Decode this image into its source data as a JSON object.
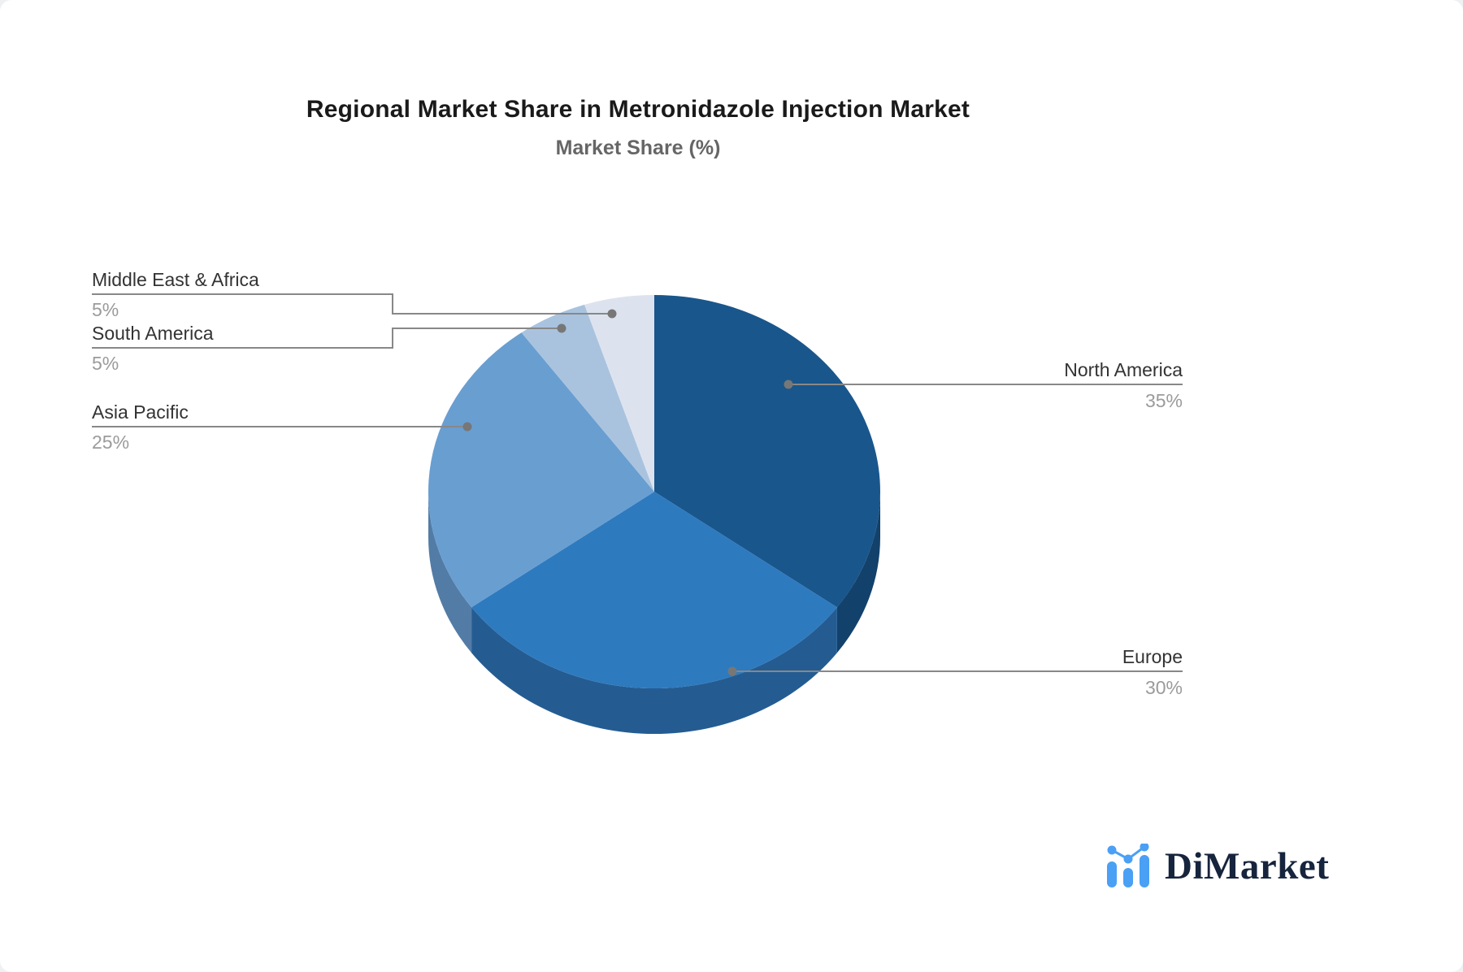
{
  "header": {
    "title": "Regional Market Share in Metronidazole Injection Market",
    "subtitle": "Market Share (%)"
  },
  "chart_data": {
    "type": "pie",
    "style": "3d",
    "title": "Regional Market Share in Metronidazole Injection Market",
    "subtitle": "Market Share (%)",
    "unit": "%",
    "start_angle_deg": 0,
    "direction": "clockwise",
    "legend": "none",
    "categories": [
      "North America",
      "Europe",
      "Asia Pacific",
      "South America",
      "Middle East & Africa"
    ],
    "values": [
      35,
      30,
      25,
      5,
      5
    ],
    "points": [
      {
        "name": "North America",
        "value": 35,
        "label": "35%",
        "color": "#19568C",
        "side_color": "#12416B"
      },
      {
        "name": "Europe",
        "value": 30,
        "label": "30%",
        "color": "#2E7ABF",
        "side_color": "#245C92"
      },
      {
        "name": "Asia Pacific",
        "value": 25,
        "label": "25%",
        "color": "#699ED1",
        "side_color": "#527CA6"
      },
      {
        "name": "South America",
        "value": 5,
        "label": "5%",
        "color": "#A9C3DF",
        "side_color": "#8FA9C4"
      },
      {
        "name": "Middle East & Africa",
        "value": 5,
        "label": "5%",
        "color": "#DDE3EE",
        "side_color": "#C2CBD9"
      }
    ],
    "connector_color": "#888888",
    "label_color": "#333333",
    "percent_color": "#9b9b9b"
  },
  "branding": {
    "logo_text": "DiMarket",
    "logo_accent": "#4AA0F4",
    "logo_text_color": "#16243d"
  }
}
